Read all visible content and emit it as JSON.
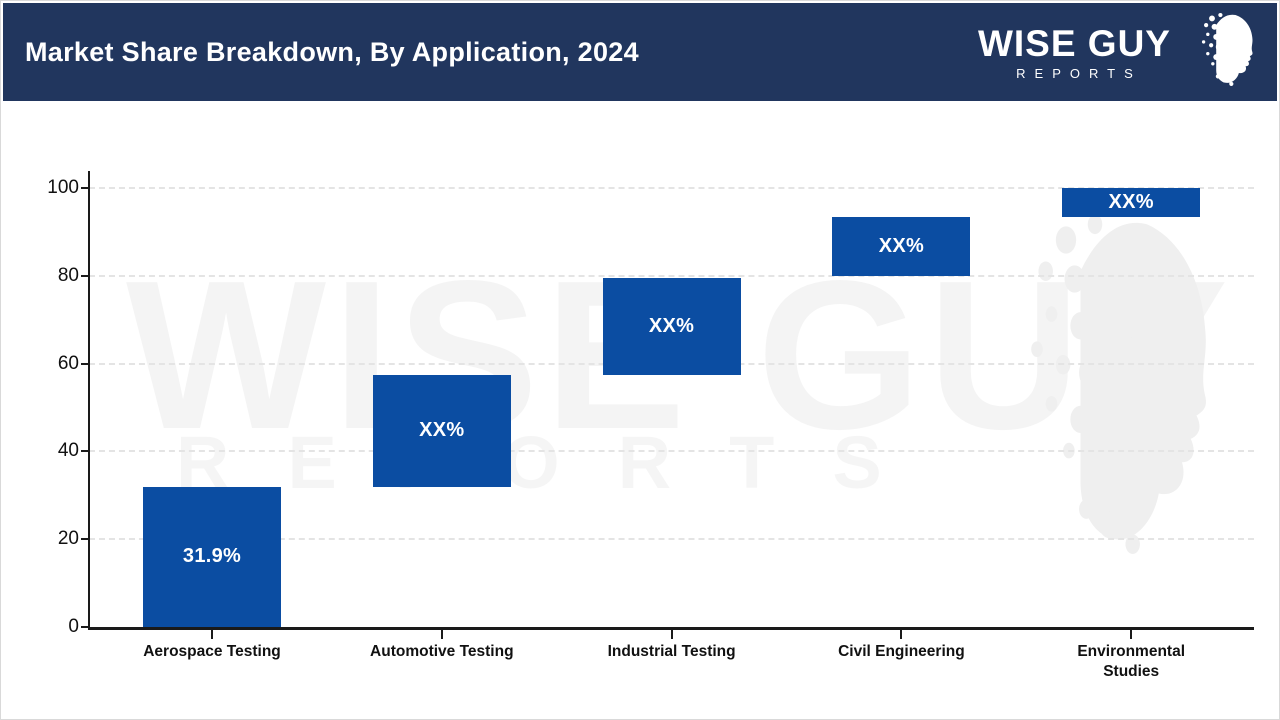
{
  "header": {
    "title": "Market Share Breakdown, By Application, 2024",
    "background_color": "#21365e",
    "logo": {
      "line1": "WISE GUY",
      "line2": "REPORTS"
    }
  },
  "watermark": {
    "line1": "WISE GUY",
    "line2": "REPORTS"
  },
  "chart_data": {
    "type": "bar",
    "subtype": "waterfall",
    "title": "Market Share Breakdown, By Application, 2024",
    "categories": [
      "Aerospace Testing",
      "Automotive Testing",
      "Industrial Testing",
      "Civil Engineering",
      "Environmental Studies"
    ],
    "segments": [
      {
        "category": "Aerospace Testing",
        "start": 0,
        "end": 31.9,
        "label": "31.9%"
      },
      {
        "category": "Automotive Testing",
        "start": 31.9,
        "end": 57.4,
        "label": "XX%"
      },
      {
        "category": "Industrial Testing",
        "start": 57.5,
        "end": 79.5,
        "label": "XX%"
      },
      {
        "category": "Civil Engineering",
        "start": 80,
        "end": 93.5,
        "label": "XX%"
      },
      {
        "category": "Environmental Studies",
        "start": 93.5,
        "end": 100,
        "label": "XX%"
      }
    ],
    "ylim": [
      0,
      100
    ],
    "yticks": [
      0,
      20,
      40,
      60,
      80,
      100
    ],
    "xlabel": "",
    "ylabel": "",
    "grid": "horizontal-dashed",
    "legend": "none",
    "bar_color": "#0b4da2",
    "bar_label_color": "#ffffff",
    "axis_color": "#1a1a1a"
  }
}
